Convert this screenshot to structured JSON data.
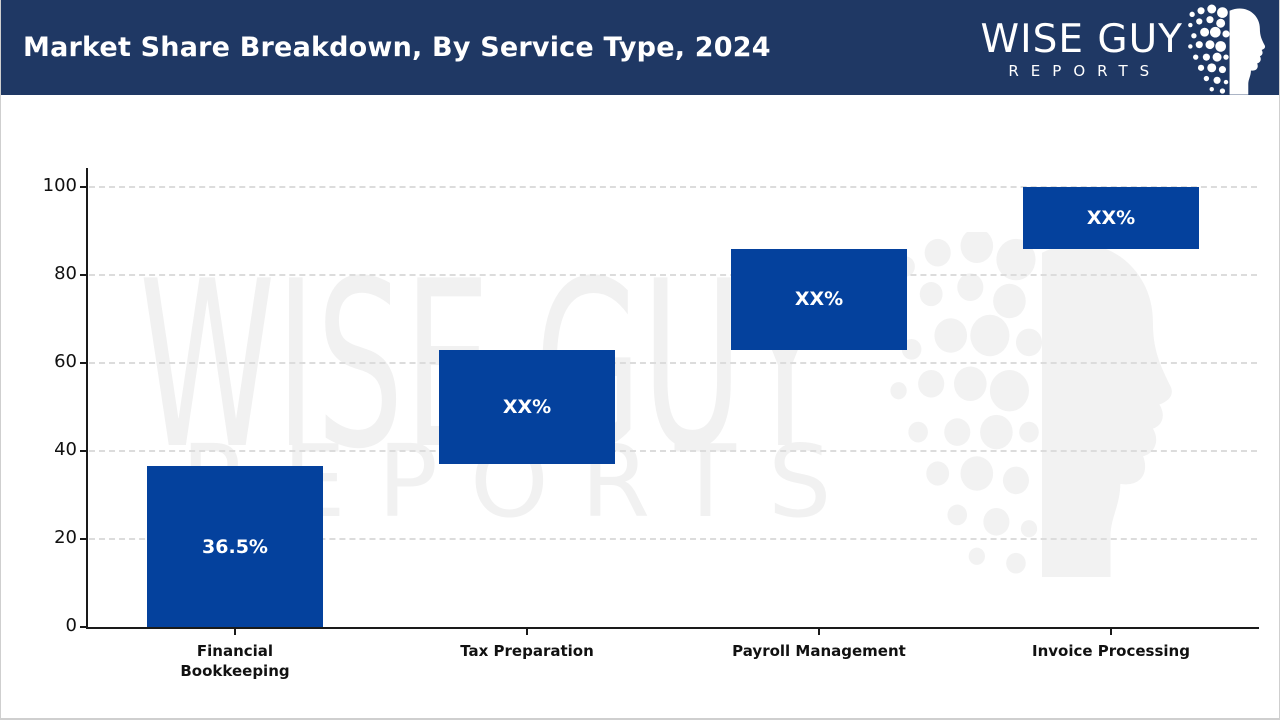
{
  "header": {
    "title": "Market Share Breakdown, By Service Type, 2024",
    "logo": {
      "line1": "WISE GUY",
      "line2": "REPORTS"
    }
  },
  "watermark": {
    "line1": "WISE GUY",
    "line2": "REPORTS"
  },
  "chart_data": {
    "type": "bar",
    "subtype": "floating-waterfall",
    "title": "Market Share Breakdown, By Service Type, 2024",
    "categories": [
      "Financial Bookkeeping",
      "Tax Preparation",
      "Payroll Management",
      "Invoice Processing"
    ],
    "bars": [
      {
        "category": "Financial Bookkeeping",
        "start": 0,
        "end": 36.5,
        "label": "36.5%"
      },
      {
        "category": "Tax Preparation",
        "start": 37,
        "end": 63,
        "label": "XX%"
      },
      {
        "category": "Payroll Management",
        "start": 63,
        "end": 86,
        "label": "XX%"
      },
      {
        "category": "Invoice Processing",
        "start": 86,
        "end": 100,
        "label": "XX%"
      }
    ],
    "xlabel": "",
    "ylabel": "",
    "ylim": [
      0,
      100
    ],
    "yticks": [
      0,
      20,
      40,
      60,
      80,
      100
    ],
    "grid": {
      "horizontal": true,
      "style": "dashed"
    },
    "legend": "none",
    "colors": {
      "bar": "#04419d",
      "bar_label": "#ffffff",
      "axis": "#1a1a1a",
      "tick_label": "#111111",
      "gridline": "#dcdcdc"
    }
  },
  "colors": {
    "header_bg": "#1f3864",
    "page_bg": "#ffffff",
    "watermark": "#f1f1f1",
    "border": "#cfcfcf"
  }
}
